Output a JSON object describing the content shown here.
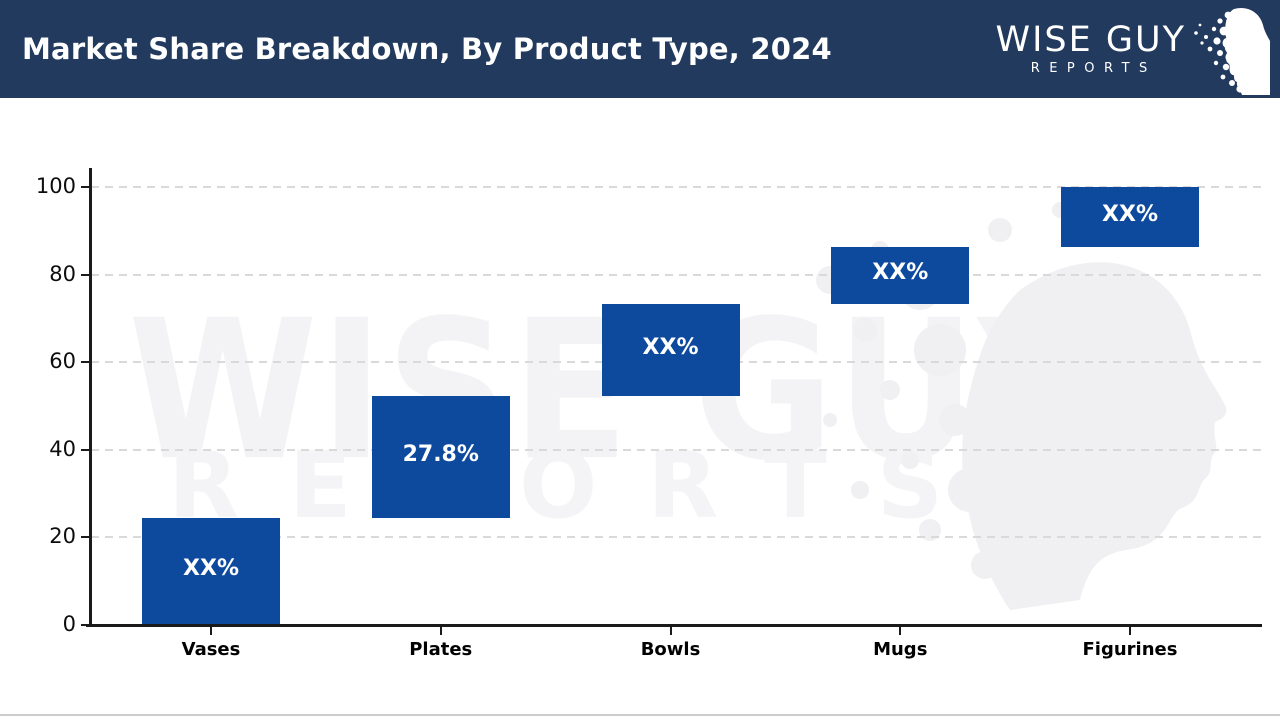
{
  "header": {
    "title": "Market Share Breakdown, By Product Type, 2024",
    "bg_color": "#213a5e",
    "logo": {
      "line1": "WISE GUY",
      "line2": "REPORTS"
    }
  },
  "watermark": {
    "line1": "WISE GUY",
    "line2": "REPORTS"
  },
  "chart_data": {
    "type": "bar",
    "subtype": "waterfall",
    "title": "Market Share Breakdown, By Product Type, 2024",
    "categories": [
      "Vases",
      "Plates",
      "Bowls",
      "Mugs",
      "Figurines"
    ],
    "segments": [
      {
        "category": "Vases",
        "start": 0,
        "end": 24.5,
        "label": "XX%"
      },
      {
        "category": "Plates",
        "start": 24.5,
        "end": 52.3,
        "label": "27.8%"
      },
      {
        "category": "Bowls",
        "start": 52.3,
        "end": 73.2,
        "label": "XX%"
      },
      {
        "category": "Mugs",
        "start": 73.2,
        "end": 86.4,
        "label": "XX%"
      },
      {
        "category": "Figurines",
        "start": 86.4,
        "end": 100,
        "label": "XX%"
      }
    ],
    "xlabel": "",
    "ylabel": "",
    "ylim": [
      0,
      100
    ],
    "yticks": [
      0,
      20,
      40,
      60,
      80,
      100
    ],
    "grid": "horizontal-dashed",
    "legend": "none",
    "bar_color": "#0d4a9e",
    "bar_label_color": "#ffffff",
    "grid_color": "#d9d9d9",
    "axis_color": "#1a1a1a",
    "tick_label_color": "#0d0d0d"
  }
}
